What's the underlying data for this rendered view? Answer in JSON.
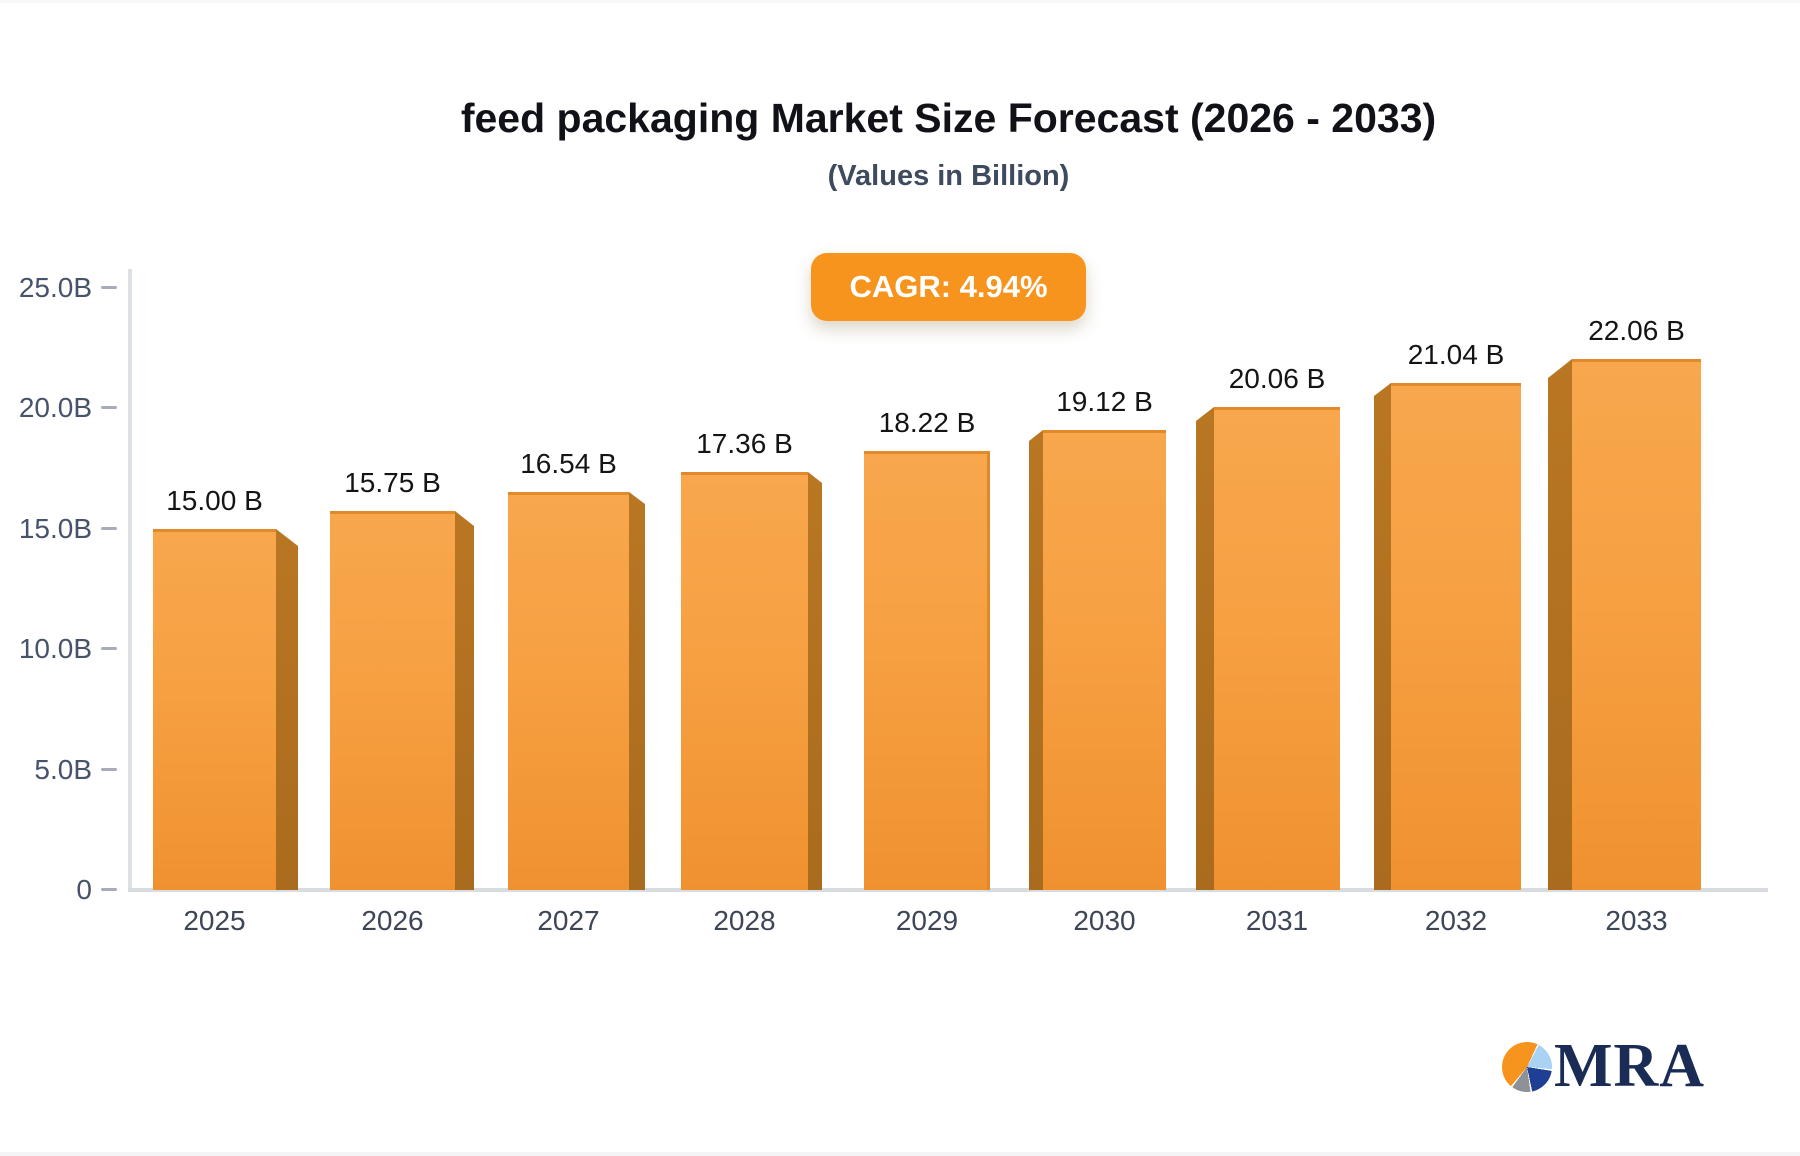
{
  "page": {
    "title": "feed packaging Market Size Forecast (2026 - 2033)",
    "subtitle": "(Values in Billion)",
    "badge_label": "CAGR: 4.94%"
  },
  "chart_data": {
    "type": "bar",
    "title": "feed packaging Market Size Forecast (2026 - 2033)",
    "subtitle": "(Values in Billion)",
    "xlabel": "",
    "ylabel": "",
    "ylim": [
      0,
      25
    ],
    "grid": false,
    "legend": "none",
    "categories": [
      "2025",
      "2026",
      "2027",
      "2028",
      "2029",
      "2030",
      "2031",
      "2032",
      "2033"
    ],
    "values": [
      15.0,
      15.75,
      16.54,
      17.36,
      18.22,
      19.12,
      20.06,
      21.04,
      22.06
    ],
    "value_labels": [
      "15.00 B",
      "15.75 B",
      "16.54 B",
      "17.36 B",
      "18.22 B",
      "19.12 B",
      "20.06 B",
      "21.04 B",
      "22.06 B"
    ],
    "yticks": [
      {
        "label": "25.0B",
        "value": 25
      },
      {
        "label": "20.0B",
        "value": 20
      },
      {
        "label": "15.0B",
        "value": 15
      },
      {
        "label": "10.0B",
        "value": 10
      },
      {
        "label": "5.0B",
        "value": 5
      },
      {
        "label": "0",
        "value": 0
      }
    ],
    "annotation": "CAGR: 4.94%"
  },
  "colors": {
    "bar_face_top": "#f8a74d",
    "bar_face_bottom": "#f09130",
    "bar_edge": "#e18a2b",
    "bar_side": "#b06f20",
    "badge_bg": "#f7941e",
    "badge_text": "#ffffff",
    "axis_line": "#dde0e4",
    "tick_text": "#47536b",
    "label_text": "#141414",
    "logo_navy": "#1a2c55",
    "logo_orange": "#f7941d",
    "logo_lightblue": "#a9d2f3",
    "logo_gray": "#8f9198"
  },
  "logo": {
    "text": "MRA",
    "icon": "pie-chart-icon"
  }
}
